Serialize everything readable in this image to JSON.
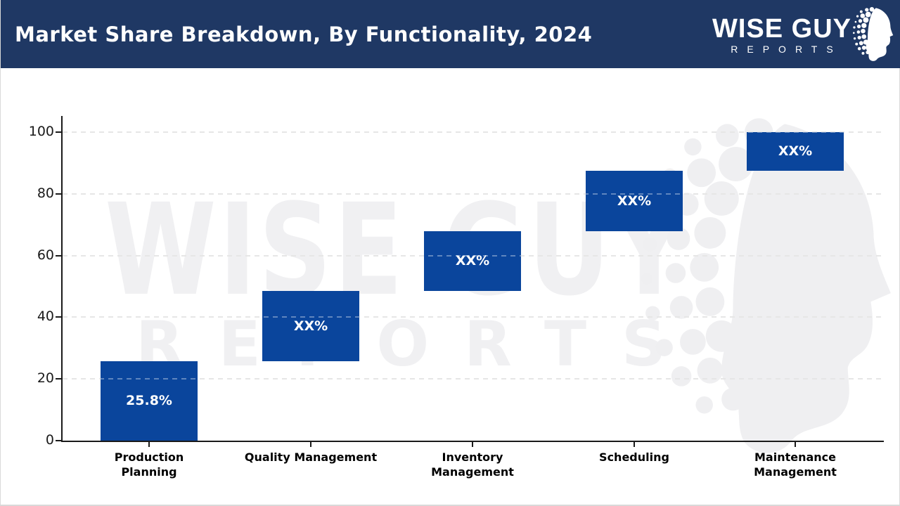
{
  "header": {
    "title": "Market Share Breakdown, By Functionality, 2024",
    "logo": {
      "line1": "WISE GUY",
      "line2": "REPORTS"
    }
  },
  "watermark": {
    "line1": "WISE GUY",
    "line2": "REPORTS"
  },
  "colors": {
    "header_bg": "#1F3864",
    "bar": "#0A459C",
    "bar_label": "#FFFFFF",
    "grid": "#D8D8D8",
    "axis": "#1A1A1A",
    "watermark": "#F0F0F2",
    "page_border": "#D9D9D9"
  },
  "chart_data": {
    "type": "bar",
    "subtype": "floating-segment-waterfall",
    "title": "Market Share Breakdown, By Functionality, 2024",
    "categories": [
      "Production Planning",
      "Quality Management",
      "Inventory Management",
      "Scheduling",
      "Maintenance Management"
    ],
    "category_label_lines": [
      [
        "Production",
        "Planning"
      ],
      [
        "Quality Management"
      ],
      [
        "Inventory",
        "Management"
      ],
      [
        "Scheduling"
      ],
      [
        "Maintenance",
        "Management"
      ]
    ],
    "segments": [
      {
        "category": "Production Planning",
        "from": 0,
        "to": 25.8,
        "label": "25.8%"
      },
      {
        "category": "Quality Management",
        "from": 25.8,
        "to": 48.6,
        "label": "XX%"
      },
      {
        "category": "Inventory Management",
        "from": 48.6,
        "to": 67.9,
        "label": "XX%"
      },
      {
        "category": "Scheduling",
        "from": 67.9,
        "to": 87.5,
        "label": "XX%"
      },
      {
        "category": "Maintenance Management",
        "from": 87.5,
        "to": 100,
        "label": "XX%"
      }
    ],
    "xlabel": "",
    "ylabel": "",
    "ylim": [
      0,
      100
    ],
    "yticks": [
      0,
      20,
      40,
      60,
      80,
      100
    ],
    "grid": true,
    "grid_style": "dashed",
    "legend": null,
    "bar_color": "#0A459C",
    "bar_label_color": "#FFFFFF"
  }
}
